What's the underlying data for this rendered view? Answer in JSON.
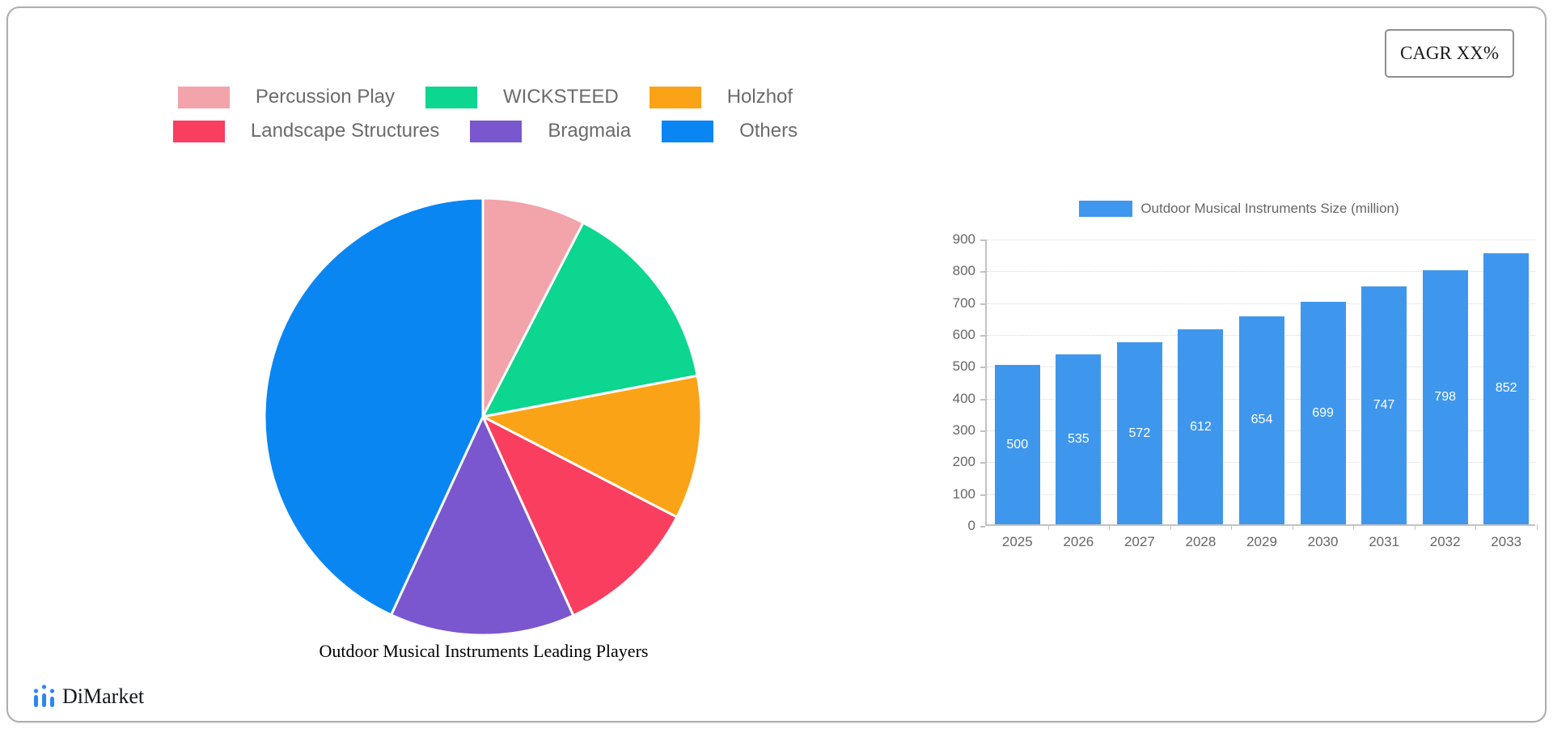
{
  "cagr_box": {
    "label": "CAGR XX%"
  },
  "brand": {
    "name": "DiMarket"
  },
  "colors": {
    "card_border": "#aeaeae",
    "bar_blue": "#3f97ed",
    "legend_text": "#6b6b6b",
    "axis_text": "#666666",
    "brand_blue": "#2e86f0"
  },
  "chart_data": [
    {
      "type": "pie",
      "title": "Outdoor Musical Instruments Leading Players",
      "labels": [
        "Percussion Play",
        "WICKSTEED",
        "Holzhof",
        "Landscape Structures",
        "Bragmaia",
        "Others"
      ],
      "values": [
        7.6,
        14.4,
        10.6,
        10.6,
        13.7,
        43.1
      ],
      "colors": [
        "#f3a3aa",
        "#0cd68f",
        "#fba317",
        "#f93e5f",
        "#7a57ce",
        "#0a86f3"
      ],
      "legend_position": "top",
      "legend_rows": [
        3,
        3
      ],
      "start_angle_deg": 0,
      "direction": "clockwise"
    },
    {
      "type": "bar",
      "series_name": "Outdoor Musical Instruments Size (million)",
      "categories": [
        "2025",
        "2026",
        "2027",
        "2028",
        "2029",
        "2030",
        "2031",
        "2032",
        "2033"
      ],
      "values": [
        500,
        535,
        572,
        612,
        654,
        699,
        747,
        798,
        852
      ],
      "ylim": [
        0,
        900
      ],
      "ytick_step": 100,
      "bar_color": "#3f97ed",
      "value_label_color": "#ffffff",
      "grid": true,
      "legend_position": "top"
    }
  ]
}
